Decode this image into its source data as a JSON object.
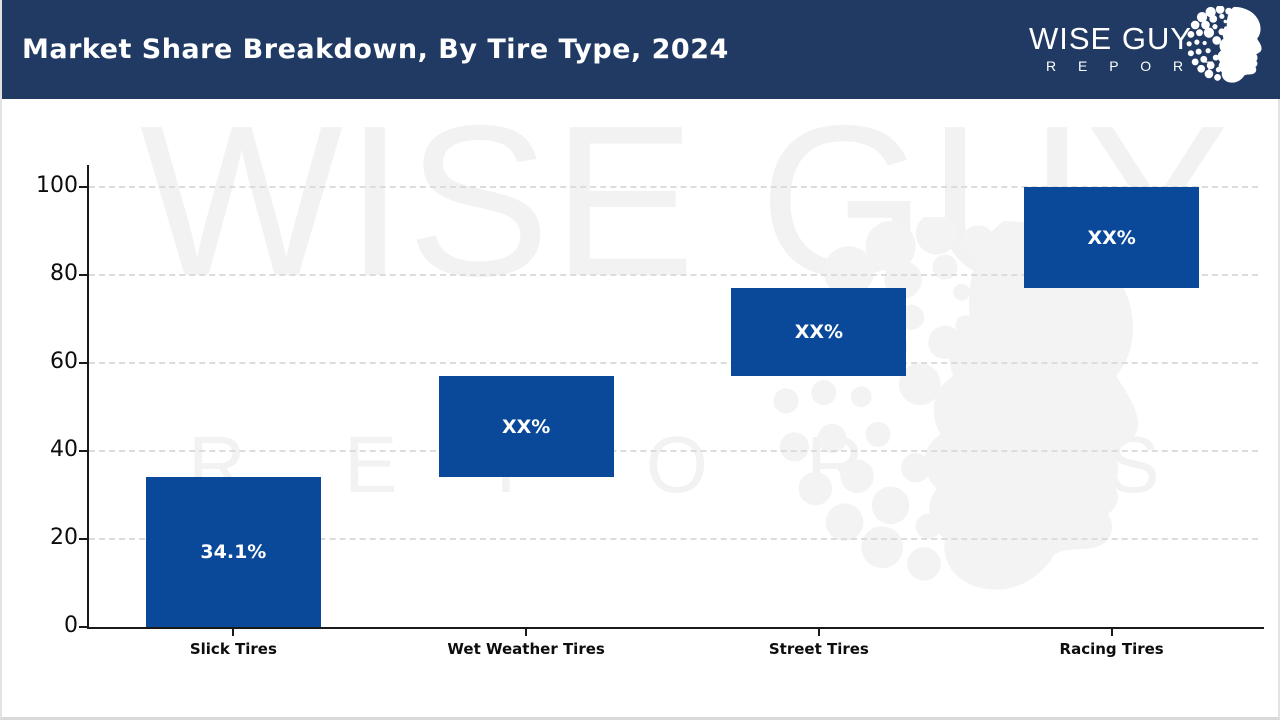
{
  "header": {
    "title": "Market Share Breakdown, By Tire Type, 2024",
    "logo": {
      "line1": "WISE GUY",
      "line2": "R E P O R T S"
    }
  },
  "watermark": {
    "line1": "WISE GUY",
    "line2": "R E P O R T S"
  },
  "colors": {
    "header_bg": "#213a64",
    "bar": "#0a4899",
    "bar_label": "#ffffff",
    "grid": "#dcdcdc",
    "axis": "#1a1a1a",
    "watermark": "#f2f2f2",
    "title_text": "#ffffff"
  },
  "chart_data": {
    "type": "bar",
    "subtype": "waterfall",
    "title": "Market Share Breakdown, By Tire Type, 2024",
    "categories": [
      "Slick Tires",
      "Wet Weather Tires",
      "Street Tires",
      "Racing Tires"
    ],
    "segments": [
      {
        "category": "Slick Tires",
        "start": 0,
        "end": 34.1,
        "label": "34.1%"
      },
      {
        "category": "Wet Weather Tires",
        "start": 34.1,
        "end": 57,
        "label": "XX%"
      },
      {
        "category": "Street Tires",
        "start": 57,
        "end": 77,
        "label": "XX%"
      },
      {
        "category": "Racing Tires",
        "start": 77,
        "end": 100,
        "label": "XX%"
      }
    ],
    "xlabel": "",
    "ylabel": "",
    "y_ticks": [
      0,
      20,
      40,
      60,
      80,
      100
    ],
    "ylim": [
      0,
      105
    ],
    "grid": "horizontal-dashed",
    "legend": "none",
    "bar_value_position": "inside-center"
  }
}
